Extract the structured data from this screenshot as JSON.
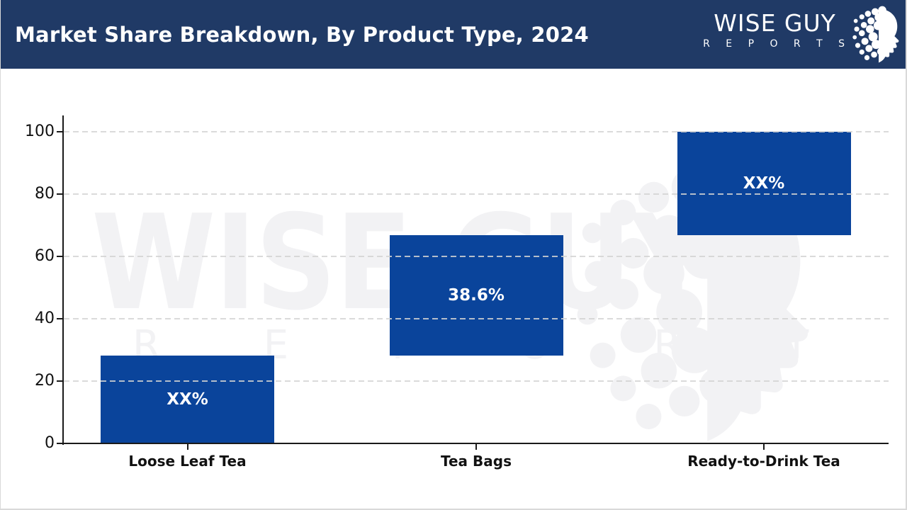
{
  "header": {
    "title": "Market Share Breakdown, By Product Type, 2024",
    "logo": {
      "line1": "WISE GUY",
      "line2": "R E P O R T S"
    }
  },
  "watermark": {
    "line1": "WISE GUY",
    "line2": "R E P O R T S"
  },
  "chart_data": {
    "type": "bar",
    "subtype": "waterfall-floating-segments",
    "title": "Market Share Breakdown, By Product Type, 2024",
    "categories": [
      "Loose Leaf Tea",
      "Tea Bags",
      "Ready-to-Drink Tea"
    ],
    "segments": [
      {
        "category": "Loose Leaf Tea",
        "start": 0,
        "end": 28.1,
        "value": 28.1,
        "label": "XX%"
      },
      {
        "category": "Tea Bags",
        "start": 28.1,
        "end": 66.7,
        "value": 38.6,
        "label": "38.6%"
      },
      {
        "category": "Ready-to-Drink Tea",
        "start": 66.7,
        "end": 100,
        "value": 33.3,
        "label": "XX%"
      }
    ],
    "xlabel": "",
    "ylabel": "",
    "ylim": [
      0,
      100
    ],
    "y_ticks": [
      0,
      20,
      40,
      60,
      80,
      100
    ],
    "grid": "horizontal-dashed",
    "legend": "none"
  },
  "colors": {
    "header_bg": "#203a66",
    "bar": "#0a449b",
    "bar_label": "#ffffff",
    "axis": "#1a1a1a",
    "gridline": "#d3d3d3",
    "watermark": "#f2f2f4",
    "page_border": "#d9d9d9"
  }
}
